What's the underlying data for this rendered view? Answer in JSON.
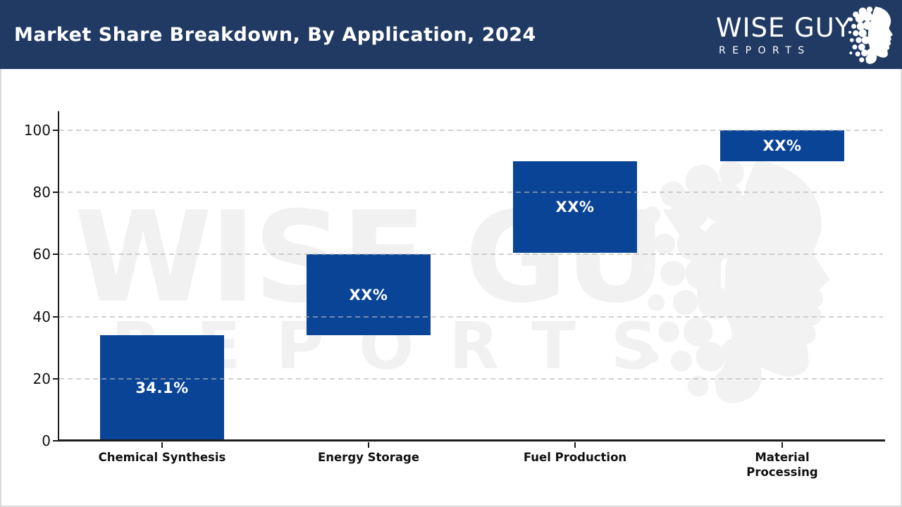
{
  "header": {
    "title": "Market Share Breakdown, By Application, 2024",
    "logo": {
      "line1": "WISE GUY",
      "line2": "REPORTS"
    }
  },
  "watermark": {
    "line1": "WISE GUY",
    "line2": "REPORTS"
  },
  "chart_data": {
    "type": "bar",
    "variant": "floating-segment-breakdown",
    "title": "Market Share Breakdown, By Application, 2024",
    "categories": [
      "Chemical Synthesis",
      "Energy Storage",
      "Fuel Production",
      "Material\nProcessing"
    ],
    "bars": [
      {
        "category": "Chemical Synthesis",
        "start": 0,
        "end": 34.1,
        "label": "34.1%"
      },
      {
        "category": "Energy Storage",
        "start": 34.1,
        "end": 60,
        "label": "XX%"
      },
      {
        "category": "Fuel Production",
        "start": 60.5,
        "end": 90,
        "label": "XX%"
      },
      {
        "category": "Material Processing",
        "start": 90,
        "end": 100,
        "label": "XX%"
      }
    ],
    "ylim": [
      0,
      100
    ],
    "yticks": [
      0,
      20,
      40,
      60,
      80,
      100
    ],
    "grid": "dashed-horizontal",
    "legend": "none",
    "bar_color": "#0a4497",
    "bar_label_color": "#ffffff"
  },
  "colors": {
    "header_bg": "#213a64",
    "bar": "#0a4497",
    "grid": "#c9c9c9",
    "axis": "#1c1c1c",
    "watermark": "#f1f1f1"
  }
}
